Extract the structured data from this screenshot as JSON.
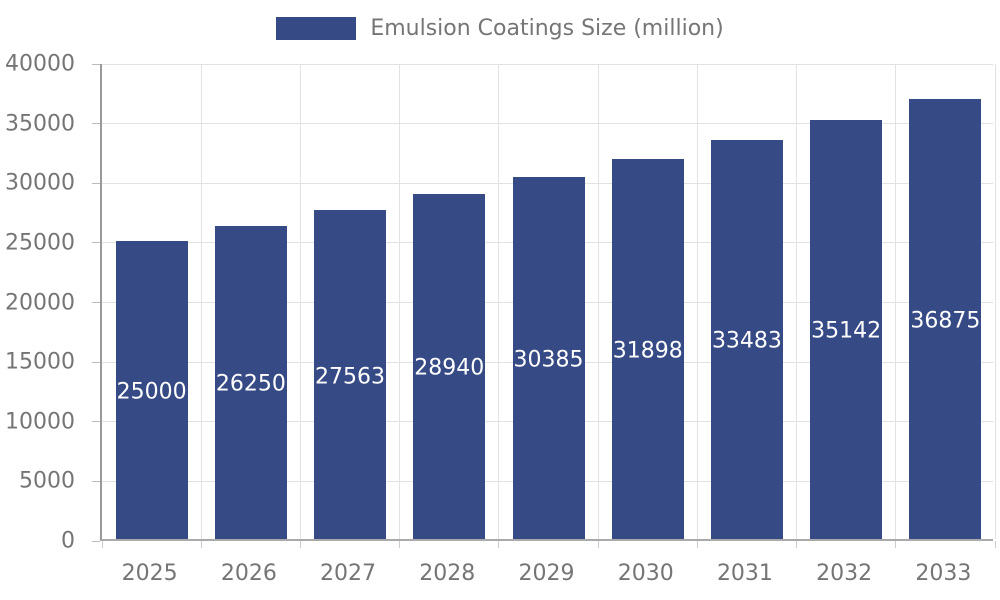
{
  "legend": {
    "label": "Emulsion Coatings Size (million)"
  },
  "colors": {
    "bar": "#364a85",
    "axis_text": "#757575",
    "grid": "#e2e2e2",
    "spine": "#999999",
    "value_label": "#ffffff"
  },
  "chart_data": {
    "type": "bar",
    "title": "",
    "xlabel": "",
    "ylabel": "",
    "categories": [
      "2025",
      "2026",
      "2027",
      "2028",
      "2029",
      "2030",
      "2031",
      "2032",
      "2033"
    ],
    "series": [
      {
        "name": "Emulsion Coatings Size (million)",
        "values": [
          25000,
          26250,
          27563,
          28940,
          30385,
          31898,
          33483,
          35142,
          36875
        ]
      }
    ],
    "value_labels_visible": true,
    "value_label_position": "inside-center",
    "ylim": [
      0,
      40000
    ],
    "yticks": [
      0,
      5000,
      10000,
      15000,
      20000,
      25000,
      30000,
      35000,
      40000
    ],
    "grid": "horizontal-and-vertical",
    "legend_position": "top-center"
  }
}
